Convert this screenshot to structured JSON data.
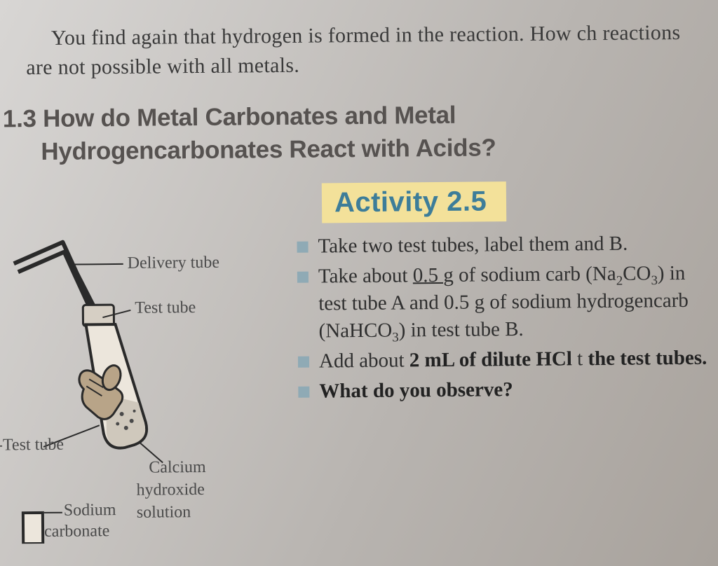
{
  "intro": {
    "text": "You find again that hydrogen is formed in the reaction. How ch reactions are not possible with all metals."
  },
  "section": {
    "number": "1.3",
    "title_line1": "How do Metal Carbonates and Metal",
    "title_line2": "Hydrogencarbonates React with Acids?"
  },
  "activity": {
    "label": "Activity 2.5",
    "banner_bg": "#f3e19a",
    "banner_color": "#3d7d99"
  },
  "bullets": [
    {
      "html": "Take two test tubes, label them and B."
    },
    {
      "html": "Take about <span class='u-under'>0.5 g</span> of sodium carb (Na<sub>2</sub>CO<sub>3</sub>) in test tube A and 0.5 g of sodium hydrogencarb (NaHCO<sub>3</sub>) in test tube B."
    },
    {
      "html": "Add about <span class='bold'>2 mL of dilute HCl</span> t <span class='bold'>the test tubes.</span>"
    },
    {
      "html": "<span class='bold'>What do you observe?</span>"
    }
  ],
  "diagram": {
    "labels": {
      "delivery_tube": "Delivery tube",
      "test_tube": "Test tube",
      "test_tube2": "Test tube",
      "calcium": "Calcium",
      "hydroxide": "hydroxide",
      "solution": "solution",
      "sodium": "Sodium",
      "carbonate": "carbonate"
    },
    "stroke": "#2a2a2a",
    "fill_hand": "#9b8a76",
    "fill_tube": "#e6e0d8"
  },
  "style": {
    "body_bg_start": "#d8d6d4",
    "body_bg_end": "#a8a29c",
    "heading_color": "#565250",
    "bullet_color": "#8faab5",
    "text_color": "#2f2f2f",
    "intro_fontsize": 30,
    "heading_fontsize": 35,
    "activity_fontsize": 40,
    "bullet_fontsize": 29,
    "label_fontsize": 24
  }
}
